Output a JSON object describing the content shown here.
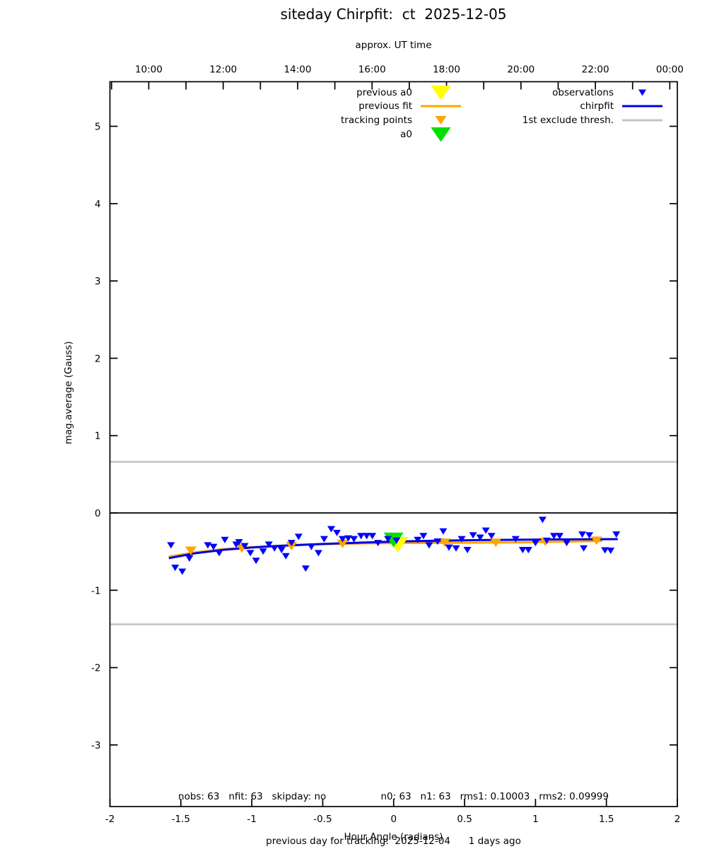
{
  "title": "siteday Chirpfit:  ct  2025-12-05",
  "colors": {
    "observations": "#0000ff",
    "chirpfit": "#0000dd",
    "previous_fit": "#ffa500",
    "tracking_points": "#ffa500",
    "a0": "#00e000",
    "previous_a0": "#ffff00",
    "exclude_threshold": "#c4c4c4",
    "axis": "#000000"
  },
  "top_axis": {
    "title": "approx. UT time",
    "major_ticks": [
      {
        "hour": 10,
        "label": "10:00"
      },
      {
        "hour": 12,
        "label": "12:00"
      },
      {
        "hour": 14,
        "label": "14:00"
      },
      {
        "hour": 16,
        "label": "16:00"
      },
      {
        "hour": 18,
        "label": "18:00"
      },
      {
        "hour": 20,
        "label": "20:00"
      },
      {
        "hour": 22,
        "label": "22:00"
      },
      {
        "hour": 24,
        "label": "00:00"
      }
    ],
    "minor_hours": [
      9,
      11,
      13,
      15,
      17,
      19,
      21,
      23
    ]
  },
  "x_axis": {
    "label": "Hour Angle (radians)",
    "ticks": [
      {
        "v": -2,
        "label": "-2"
      },
      {
        "v": -1.5,
        "label": "-1.5"
      },
      {
        "v": -1,
        "label": "-1"
      },
      {
        "v": -0.5,
        "label": "-0.5"
      },
      {
        "v": 0,
        "label": "0"
      },
      {
        "v": 0.5,
        "label": "0.5"
      },
      {
        "v": 1,
        "label": "1"
      },
      {
        "v": 1.5,
        "label": "1.5"
      },
      {
        "v": 2,
        "label": "2"
      }
    ]
  },
  "y_axis": {
    "label": "mag.average (Gauss)",
    "ticks": [
      {
        "v": 5,
        "label": "5"
      },
      {
        "v": 4,
        "label": "4"
      },
      {
        "v": 3,
        "label": "3"
      },
      {
        "v": 2,
        "label": "2"
      },
      {
        "v": 1,
        "label": "1"
      },
      {
        "v": 0,
        "label": "0"
      },
      {
        "v": -1,
        "label": "-1"
      },
      {
        "v": -2,
        "label": "-2"
      },
      {
        "v": -3,
        "label": "-3"
      }
    ]
  },
  "legend": {
    "left": [
      {
        "label": "previous a0",
        "marker": "triangle-large",
        "color_key": "previous_a0"
      },
      {
        "label": "previous fit",
        "marker": "line",
        "color_key": "previous_fit"
      },
      {
        "label": "tracking points",
        "marker": "triangle-medium",
        "color_key": "tracking_points"
      },
      {
        "label": "a0",
        "marker": "triangle-large",
        "color_key": "a0"
      }
    ],
    "right": [
      {
        "label": "observations",
        "marker": "triangle-small",
        "color_key": "observations"
      },
      {
        "label": "chirpfit",
        "marker": "line",
        "color_key": "chirpfit"
      },
      {
        "label": "1st exclude thresh.",
        "marker": "line",
        "color_key": "exclude_threshold"
      }
    ]
  },
  "stats": {
    "nobs": 63,
    "nfit": 63,
    "skipday": "no",
    "n0": 63,
    "n1": 63,
    "rms1": 0.10003,
    "rms2": 0.09999,
    "previous_day_for_tracking": "2025-12-04",
    "days_ago": "1 days ago",
    "line1": "nobs: 63   nfit: 63   skipday: no                  n0: 63   n1: 63   rms1: 0.10003   rms2: 0.09999",
    "line2": "previous day for tracking:  2025-12-04      1 days ago"
  },
  "chart_data": {
    "type": "scatter",
    "title": "siteday Chirpfit:  ct  2025-12-05",
    "xlabel": "Hour Angle (radians)",
    "x2label": "approx. UT time",
    "ylabel": "mag.average (Gauss)",
    "xlim": [
      -2,
      2
    ],
    "ylim": [
      -3.8,
      5.58
    ],
    "grid": false,
    "legend_position": "top-inside",
    "zero_line_y": 0,
    "exclude_thresholds": [
      0.66,
      -1.44
    ],
    "series": {
      "observations": [
        [
          -1.57,
          -0.42
        ],
        [
          -1.54,
          -0.71
        ],
        [
          -1.49,
          -0.76
        ],
        [
          -1.44,
          -0.59
        ],
        [
          -1.31,
          -0.42
        ],
        [
          -1.27,
          -0.44
        ],
        [
          -1.23,
          -0.52
        ],
        [
          -1.19,
          -0.35
        ],
        [
          -1.11,
          -0.41
        ],
        [
          -1.09,
          -0.38
        ],
        [
          -1.05,
          -0.43
        ],
        [
          -1.01,
          -0.52
        ],
        [
          -0.97,
          -0.62
        ],
        [
          -0.92,
          -0.5
        ],
        [
          -0.88,
          -0.41
        ],
        [
          -0.84,
          -0.46
        ],
        [
          -0.79,
          -0.48
        ],
        [
          -0.76,
          -0.56
        ],
        [
          -0.72,
          -0.39
        ],
        [
          -0.67,
          -0.31
        ],
        [
          -0.62,
          -0.72
        ],
        [
          -0.58,
          -0.44
        ],
        [
          -0.53,
          -0.52
        ],
        [
          -0.49,
          -0.34
        ],
        [
          -0.44,
          -0.21
        ],
        [
          -0.4,
          -0.26
        ],
        [
          -0.36,
          -0.34
        ],
        [
          -0.32,
          -0.33
        ],
        [
          -0.28,
          -0.34
        ],
        [
          -0.23,
          -0.3
        ],
        [
          -0.19,
          -0.3
        ],
        [
          -0.15,
          -0.3
        ],
        [
          -0.11,
          -0.39
        ],
        [
          -0.04,
          -0.34
        ],
        [
          0.02,
          -0.36
        ],
        [
          0.17,
          -0.35
        ],
        [
          0.21,
          -0.3
        ],
        [
          0.25,
          -0.42
        ],
        [
          0.31,
          -0.37
        ],
        [
          0.35,
          -0.24
        ],
        [
          0.39,
          -0.45
        ],
        [
          0.44,
          -0.46
        ],
        [
          0.48,
          -0.34
        ],
        [
          0.52,
          -0.48
        ],
        [
          0.56,
          -0.29
        ],
        [
          0.61,
          -0.32
        ],
        [
          0.65,
          -0.23
        ],
        [
          0.69,
          -0.3
        ],
        [
          0.86,
          -0.34
        ],
        [
          0.91,
          -0.48
        ],
        [
          0.95,
          -0.48
        ],
        [
          1.0,
          -0.39
        ],
        [
          1.05,
          -0.09
        ],
        [
          1.08,
          -0.36
        ],
        [
          1.13,
          -0.3
        ],
        [
          1.17,
          -0.3
        ],
        [
          1.22,
          -0.39
        ],
        [
          1.33,
          -0.28
        ],
        [
          1.34,
          -0.46
        ],
        [
          1.38,
          -0.29
        ],
        [
          1.49,
          -0.485
        ],
        [
          1.53,
          -0.49
        ],
        [
          1.57,
          -0.28
        ]
      ],
      "tracking_points": [
        [
          -1.43,
          -0.49
        ],
        [
          -1.07,
          -0.46
        ],
        [
          -0.72,
          -0.43
        ],
        [
          -0.36,
          -0.4
        ],
        [
          0.0,
          -0.39
        ],
        [
          0.36,
          -0.385
        ],
        [
          0.72,
          -0.385
        ],
        [
          1.07,
          -0.375
        ],
        [
          1.43,
          -0.36
        ]
      ],
      "a0": [
        [
          0.0,
          -0.35
        ]
      ],
      "previous_a0": [
        [
          0.03,
          -0.41
        ]
      ],
      "previous_fit": [
        [
          -1.585,
          -0.565
        ],
        [
          -1.4,
          -0.51
        ],
        [
          -1.2,
          -0.468
        ],
        [
          -1.0,
          -0.443
        ],
        [
          -0.8,
          -0.424
        ],
        [
          -0.6,
          -0.41
        ],
        [
          -0.4,
          -0.4
        ],
        [
          -0.2,
          -0.393
        ],
        [
          0.0,
          -0.39
        ],
        [
          0.3,
          -0.387
        ],
        [
          0.6,
          -0.384
        ],
        [
          0.9,
          -0.381
        ],
        [
          1.2,
          -0.372
        ],
        [
          1.47,
          -0.362
        ]
      ],
      "chirpfit": [
        [
          -1.585,
          -0.585
        ],
        [
          -1.4,
          -0.522
        ],
        [
          -1.2,
          -0.477
        ],
        [
          -1.0,
          -0.447
        ],
        [
          -0.8,
          -0.425
        ],
        [
          -0.6,
          -0.408
        ],
        [
          -0.4,
          -0.394
        ],
        [
          -0.2,
          -0.382
        ],
        [
          0.0,
          -0.371
        ],
        [
          0.3,
          -0.359
        ],
        [
          0.6,
          -0.351
        ],
        [
          0.9,
          -0.346
        ],
        [
          1.2,
          -0.342
        ],
        [
          1.58,
          -0.338
        ]
      ]
    }
  }
}
